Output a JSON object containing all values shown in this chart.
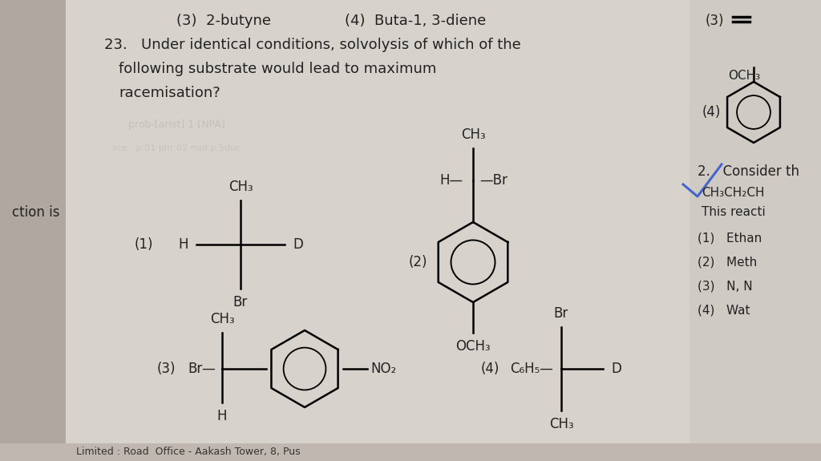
{
  "bg_color": "#d6d0ca",
  "left_strip_color": "#b8b0a8",
  "header_3": "(3)  2-butyne",
  "header_4": "(4)  Buta-1, 3-diene",
  "q23_line1": "23.   Under identical conditions, solvolysis of which of the",
  "q23_line2": "following substrate would lead to maximum",
  "q23_line3": "racemisation?",
  "side_text": "ction is",
  "footer": "Limited : Road  Office - Aakash Tower, 8, Pus",
  "right_q2": "2.   Consider th",
  "right_formula": "CH₃CH₂CH",
  "right_reacti": "This reacti",
  "right_opts": [
    "(1)   Ethan",
    "(2)   Meth",
    "(3)   N, N",
    "(4)   Wat"
  ],
  "text_color": "#222222",
  "text_color_dark": "#111111"
}
